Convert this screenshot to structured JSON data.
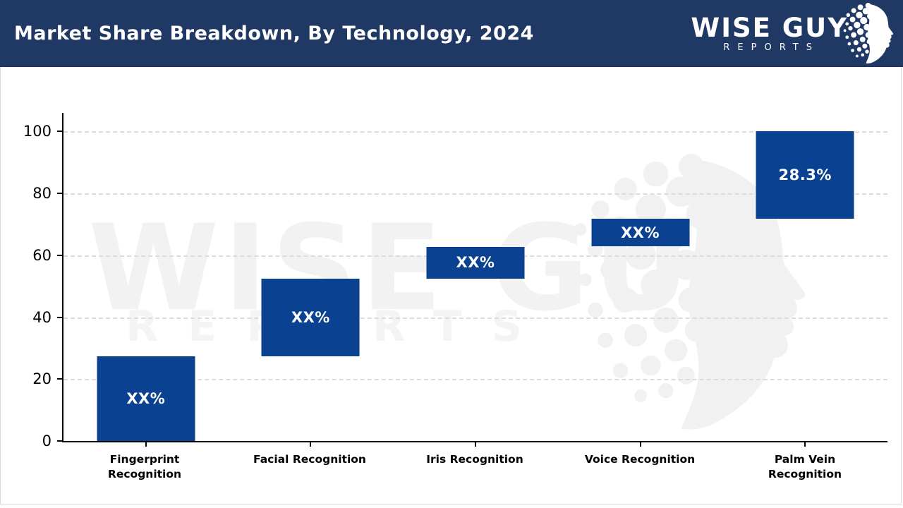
{
  "header": {
    "title": "Market Share Breakdown, By Technology, 2024",
    "logo": {
      "line1": "WISE GUY",
      "line2": "REPORTS"
    },
    "bg_color": "#1f3864",
    "text_color": "#ffffff"
  },
  "watermark": {
    "line1": "WISE GU",
    "line2": "REPORTS"
  },
  "chart_data": {
    "type": "bar",
    "subtype": "waterfall",
    "title": "Market Share Breakdown, By Technology, 2024",
    "categories": [
      "Fingerprint\nRecognition",
      "Facial Recognition",
      "Iris Recognition",
      "Voice Recognition",
      "Palm Vein\nRecognition"
    ],
    "series": [
      {
        "name": "Market share (%)",
        "segments": [
          {
            "category": "Fingerprint Recognition",
            "start": 0,
            "end": 27.3,
            "value": 27.3,
            "value_label": "XX%"
          },
          {
            "category": "Facial Recognition",
            "start": 27.3,
            "end": 52.4,
            "value": 25.1,
            "value_label": "XX%"
          },
          {
            "category": "Iris Recognition",
            "start": 52.4,
            "end": 62.8,
            "value": 10.4,
            "value_label": "XX%"
          },
          {
            "category": "Voice Recognition",
            "start": 62.8,
            "end": 71.7,
            "value": 8.9,
            "value_label": "XX%"
          },
          {
            "category": "Palm Vein Recognition",
            "start": 71.7,
            "end": 100,
            "value": 28.3,
            "value_label": "28.3%"
          }
        ]
      }
    ],
    "xlabel": "",
    "ylabel": "",
    "ylim": [
      0,
      100
    ],
    "yticks": [
      0,
      20,
      40,
      60,
      80,
      100
    ],
    "grid": "horizontal dashed",
    "legend": "none",
    "bar_color": "#0a4190",
    "bar_label_color": "#ffffff",
    "axis_color": "#000000",
    "gridline_color": "#dcdcdc"
  }
}
